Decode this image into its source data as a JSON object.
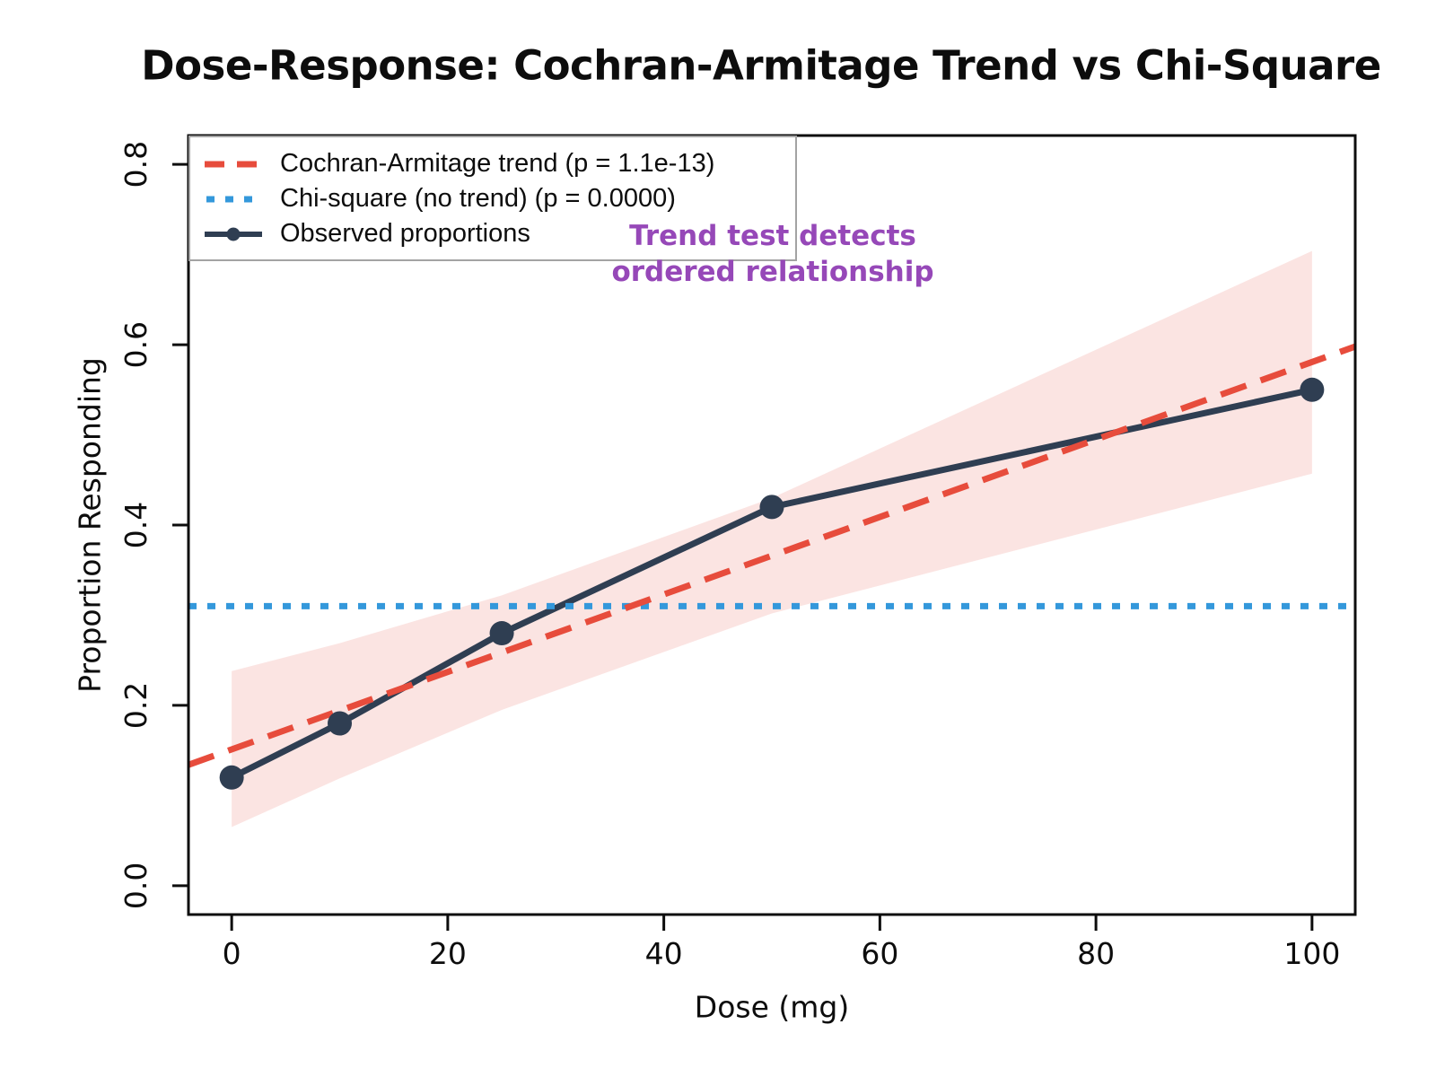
{
  "page": {
    "background": "#ffffff"
  },
  "chart_data": {
    "type": "line",
    "title": "Dose-Response: Cochran-Armitage Trend vs Chi-Square",
    "xlabel": "Dose (mg)",
    "ylabel": "Proportion Responding",
    "x_ticks": [
      0,
      20,
      40,
      60,
      80,
      100
    ],
    "x_tick_labels": [
      "0",
      "20",
      "40",
      "60",
      "80",
      "100"
    ],
    "y_ticks": [
      0.0,
      0.2,
      0.4,
      0.6,
      0.8
    ],
    "y_tick_labels": [
      "0.0",
      "0.2",
      "0.4",
      "0.6",
      "0.8"
    ],
    "xlim": [
      -4,
      104
    ],
    "ylim": [
      -0.032,
      0.832
    ],
    "grid": false,
    "legend_position": "top-left",
    "axis_color": "#0d0d0d",
    "series": [
      {
        "name": "Observed proportions",
        "style": "solid",
        "marker": true,
        "color": "#2f3e52",
        "x": [
          0,
          10,
          25,
          50,
          100
        ],
        "y": [
          0.12,
          0.18,
          0.28,
          0.42,
          0.55
        ]
      },
      {
        "name": "Cochran-Armitage trend",
        "style": "dashed",
        "color": "#e74c3c",
        "x": [
          -4,
          104
        ],
        "y": [
          0.134,
          0.598
        ]
      },
      {
        "name": "Chi-square (no trend)",
        "style": "dotted",
        "color": "#3498db",
        "x": [
          -4,
          104
        ],
        "y": [
          0.31,
          0.31
        ]
      }
    ],
    "confidence_band": {
      "x": [
        0,
        10,
        25,
        50,
        100
      ],
      "lower": [
        0.065,
        0.119,
        0.195,
        0.302,
        0.457
      ],
      "upper": [
        0.238,
        0.269,
        0.322,
        0.43,
        0.704
      ],
      "fill": "rgba(231,76,60,0.15)"
    },
    "legend": {
      "items": [
        {
          "label": "Cochran-Armitage trend (p = 1.1e-13)",
          "color": "#e74c3c",
          "style": "dashed"
        },
        {
          "label": "Chi-square (no trend) (p = 0.0000)",
          "color": "#3498db",
          "style": "dotted"
        },
        {
          "label": "Observed proportions",
          "color": "#2f3e52",
          "style": "solid-marker"
        }
      ]
    },
    "annotation": {
      "line1": "Trend test detects",
      "line2": "ordered relationship",
      "color": "#9648b8",
      "x": 50,
      "y_line1": 0.72,
      "y_line2": 0.68
    }
  }
}
